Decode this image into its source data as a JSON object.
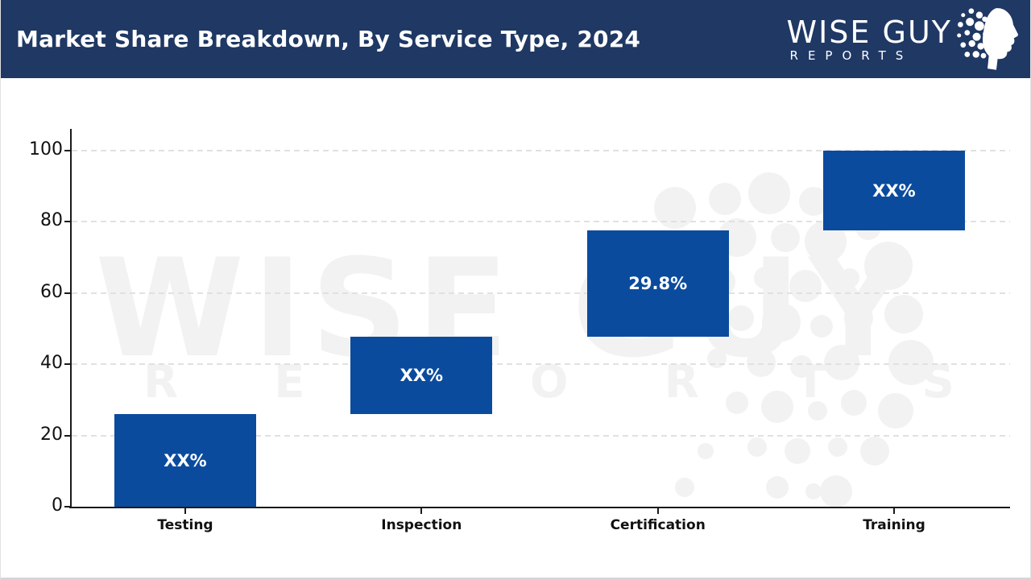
{
  "header": {
    "title": "Market Share Breakdown, By Service Type, 2024",
    "bg_color": "#1f3864",
    "logo": {
      "line1": "WISE GUY",
      "line2": "REPORTS",
      "icon": "dotted-face-icon",
      "color": "#ffffff"
    }
  },
  "watermark": {
    "line1": "WISE GUY",
    "line2": "REPORTS",
    "color": "#f2f2f2"
  },
  "chart_data": {
    "type": "bar",
    "subtype": "waterfall",
    "title": "Market Share Breakdown, By Service Type, 2024",
    "categories": [
      "Testing",
      "Inspection",
      "Certification",
      "Training"
    ],
    "segments": [
      {
        "category": "Testing",
        "start": 0,
        "end": 26,
        "label": "XX%"
      },
      {
        "category": "Inspection",
        "start": 26,
        "end": 47.7,
        "label": "XX%"
      },
      {
        "category": "Certification",
        "start": 47.7,
        "end": 77.5,
        "label": "29.8%"
      },
      {
        "category": "Training",
        "start": 77.5,
        "end": 100,
        "label": "XX%"
      }
    ],
    "bar_labels": [
      "XX%",
      "XX%",
      "29.8%",
      "XX%"
    ],
    "yticks": [
      0,
      20,
      40,
      60,
      80,
      100
    ],
    "ylim": [
      0,
      106
    ],
    "xlabel": "",
    "ylabel": "",
    "grid": "horizontal-dashed",
    "legend": "none",
    "bar_color": "#0b4b9e",
    "bar_label_color": "#ffffff",
    "grid_color": "#e1e1e1",
    "axis_color": "#1a1a1a",
    "tick_label_color": "#111111"
  }
}
